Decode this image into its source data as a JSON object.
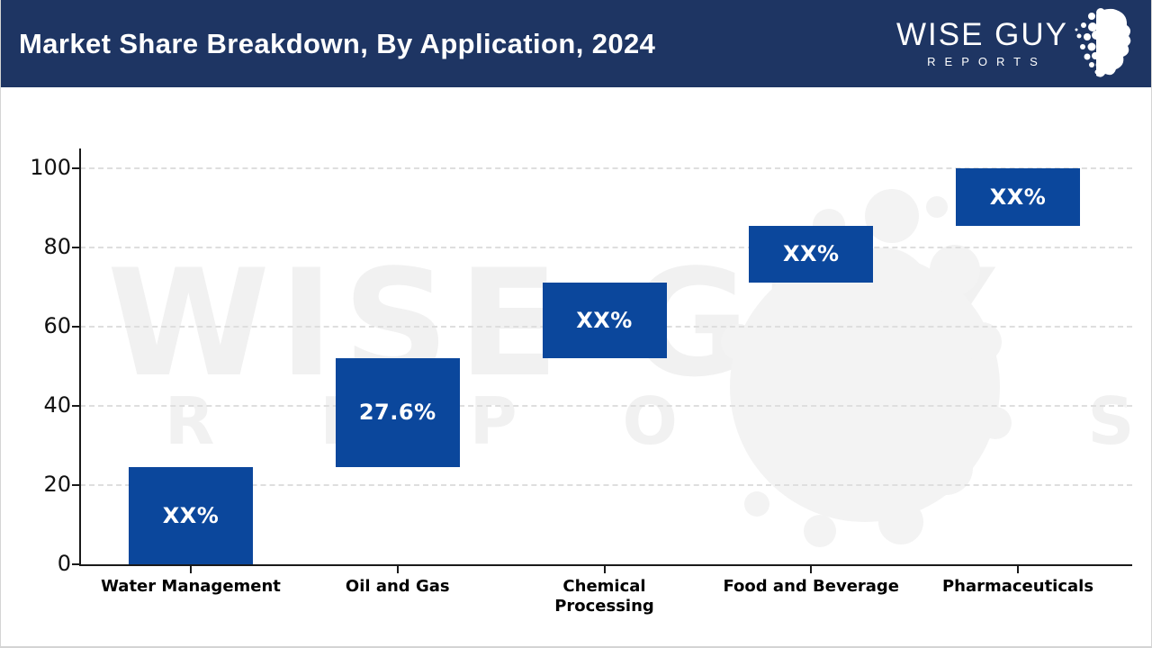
{
  "header": {
    "title": "Market Share Breakdown, By Application, 2024",
    "logo_line1": "WISE GUY",
    "logo_line2": "REPORTS"
  },
  "watermark": {
    "line1": "WISE GUY",
    "line2": "R E P O R T S"
  },
  "chart_data": {
    "type": "bar",
    "subtype": "waterfall",
    "title": "Market Share Breakdown, By Application, 2024",
    "categories": [
      "Water Management",
      "Oil and Gas",
      "Chemical\nProcessing",
      "Food and Beverage",
      "Pharmaceuticals"
    ],
    "segments": [
      {
        "category": "Water Management",
        "start": 0,
        "end": 24.5,
        "label": "XX%"
      },
      {
        "category": "Oil and Gas",
        "start": 24.5,
        "end": 52.1,
        "label": "27.6%"
      },
      {
        "category": "Chemical Processing",
        "start": 52.1,
        "end": 71.2,
        "label": "XX%"
      },
      {
        "category": "Food and Beverage",
        "start": 71.2,
        "end": 85.5,
        "label": "XX%"
      },
      {
        "category": "Pharmaceuticals",
        "start": 85.5,
        "end": 100,
        "label": "XX%"
      }
    ],
    "values": [
      24.5,
      27.6,
      19.1,
      14.3,
      14.5
    ],
    "cumulative": [
      24.5,
      52.1,
      71.2,
      85.5,
      100
    ],
    "xlabel": "",
    "ylabel": "",
    "ylim": [
      0,
      100
    ],
    "yticks": [
      0,
      20,
      40,
      60,
      80,
      100
    ],
    "grid": "horizontal-dashed",
    "legend": "none",
    "bar_color": "#0b479c",
    "bar_label_color": "#ffffff"
  },
  "colors": {
    "header_bg": "#1e3563",
    "bar": "#0b479c",
    "grid": "#dedede",
    "axis": "#1a1a1a",
    "watermark": "#f1f1f1",
    "page_border": "#d4d4d4"
  }
}
